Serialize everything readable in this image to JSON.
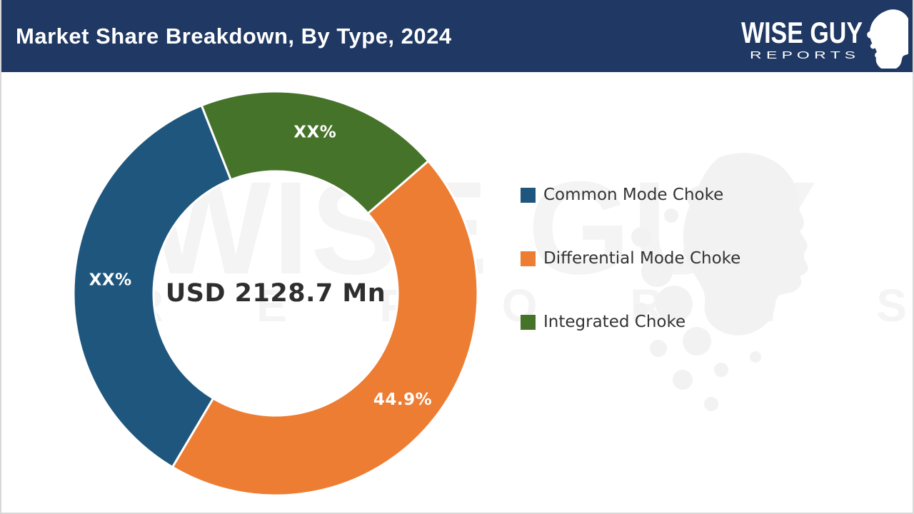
{
  "header": {
    "title": "Market Share Breakdown, By Type, 2024",
    "bg_color": "#1F3864",
    "logo": {
      "line1": "WISE GUY",
      "line2": "R E P O R T S"
    }
  },
  "watermark": {
    "line1": "WISE GUY",
    "line2": "R E P O R T S"
  },
  "chart_data": {
    "type": "pie",
    "subtype": "donut",
    "title": "Market Share Breakdown, By Type, 2024",
    "center_label": "USD 2128.7 Mn",
    "start_angle_deg": 111.5,
    "direction": "counterclockwise",
    "legend_position": "right",
    "slices": [
      {
        "name": "Common Mode Choke",
        "color": "#1F567D",
        "value_pct": 35.5,
        "data_label": "XX%"
      },
      {
        "name": "Differential Mode Choke",
        "color": "#EC7D33",
        "value_pct": 44.9,
        "data_label": "44.9%"
      },
      {
        "name": "Integrated Choke",
        "color": "#46732A",
        "value_pct": 19.6,
        "data_label": "XX%"
      }
    ]
  }
}
